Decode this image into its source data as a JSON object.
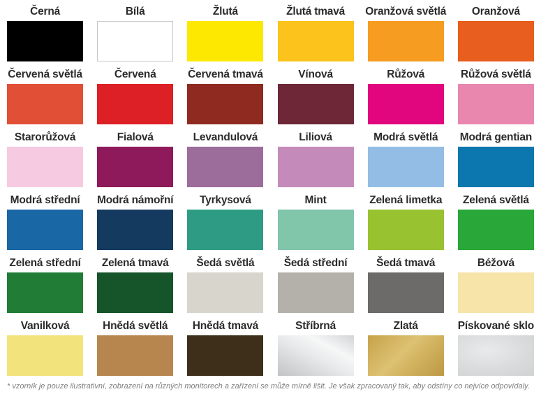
{
  "palette": {
    "rows": 6,
    "cols": 6,
    "swatches": [
      {
        "label": "Černá",
        "color": "#000000"
      },
      {
        "label": "Bílá",
        "color": "#ffffff",
        "border": "#c6c6c6"
      },
      {
        "label": "Žlutá",
        "color": "#fce800"
      },
      {
        "label": "Žlutá tmavá",
        "color": "#fbc31b"
      },
      {
        "label": "Oranžová světlá",
        "color": "#f59c21"
      },
      {
        "label": "Oranžová",
        "color": "#e75e1e"
      },
      {
        "label": "Červená světlá",
        "color": "#e14f36"
      },
      {
        "label": "Červená",
        "color": "#dd2025"
      },
      {
        "label": "Červená tmavá",
        "color": "#8e2a20"
      },
      {
        "label": "Vínová",
        "color": "#6d2737"
      },
      {
        "label": "Růžová",
        "color": "#e2067e"
      },
      {
        "label": "Růžová světlá",
        "color": "#e987ae"
      },
      {
        "label": "Starorůžová",
        "color": "#f6cae1"
      },
      {
        "label": "Fialová",
        "color": "#8e1a5b"
      },
      {
        "label": "Levandulová",
        "color": "#9c6c9a"
      },
      {
        "label": "Liliová",
        "color": "#c48aba"
      },
      {
        "label": "Modrá světlá",
        "color": "#93bde5"
      },
      {
        "label": "Modrá gentian",
        "color": "#0c77ae"
      },
      {
        "label": "Modrá střední",
        "color": "#1a67a5"
      },
      {
        "label": "Modrá námořní",
        "color": "#153a5f"
      },
      {
        "label": "Tyrkysová",
        "color": "#2e9c84"
      },
      {
        "label": "Mint",
        "color": "#81c5ab"
      },
      {
        "label": "Zelená limetka",
        "color": "#98c230"
      },
      {
        "label": "Zelená světlá",
        "color": "#29a738"
      },
      {
        "label": "Zelená střední",
        "color": "#217d36"
      },
      {
        "label": "Zelená tmavá",
        "color": "#165429"
      },
      {
        "label": "Šedá světlá",
        "color": "#d8d5cd"
      },
      {
        "label": "Šedá střední",
        "color": "#b4b1ab"
      },
      {
        "label": "Šedá tmavá",
        "color": "#6c6b69"
      },
      {
        "label": "Béžová",
        "color": "#f6e4a9"
      },
      {
        "label": "Vanilková",
        "color": "#f3e37d"
      },
      {
        "label": "Hnědá světlá",
        "color": "#b7864f"
      },
      {
        "label": "Hnědá tmavá",
        "color": "#3e2f1b"
      },
      {
        "label": "Stříbrná",
        "gradient": "linear-gradient(to top right, #c1c3c5 0%, #e9ebec 50%, #f6f7f7 70%, #d2d4d6 100%)"
      },
      {
        "label": "Zlatá",
        "gradient": "linear-gradient(135deg, #c6a24a 0%, #ddc273 45%, #d3b562 60%, #bd9843 100%)"
      },
      {
        "label": "Pískované sklo",
        "gradient": "radial-gradient(ellipse 90% 85% at 38% 38%, #e8eaeb 0%, #d8dadb 60%, #d0d2d3 100%)"
      }
    ]
  },
  "footnote": "* vzorník je pouze ilustrativní, zobrazení na různých monitorech a zařízení se může mírně lišit. Je však zpracovaný tak, aby odstíny co nejvíce odpovídaly.",
  "chart_data": {
    "type": "table",
    "columns": [
      "label",
      "color"
    ],
    "rows": [
      [
        "Černá",
        "#000000"
      ],
      [
        "Bílá",
        "#ffffff"
      ],
      [
        "Žlutá",
        "#fce800"
      ],
      [
        "Žlutá tmavá",
        "#fbc31b"
      ],
      [
        "Oranžová světlá",
        "#f59c21"
      ],
      [
        "Oranžová",
        "#e75e1e"
      ],
      [
        "Červená světlá",
        "#e14f36"
      ],
      [
        "Červená",
        "#dd2025"
      ],
      [
        "Červená tmavá",
        "#8e2a20"
      ],
      [
        "Vínová",
        "#6d2737"
      ],
      [
        "Růžová",
        "#e2067e"
      ],
      [
        "Růžová světlá",
        "#e987ae"
      ],
      [
        "Starorůžová",
        "#f6cae1"
      ],
      [
        "Fialová",
        "#8e1a5b"
      ],
      [
        "Levandulová",
        "#9c6c9a"
      ],
      [
        "Liliová",
        "#c48aba"
      ],
      [
        "Modrá světlá",
        "#93bde5"
      ],
      [
        "Modrá gentian",
        "#0c77ae"
      ],
      [
        "Modrá střední",
        "#1a67a5"
      ],
      [
        "Modrá námořní",
        "#153a5f"
      ],
      [
        "Tyrkysová",
        "#2e9c84"
      ],
      [
        "Mint",
        "#81c5ab"
      ],
      [
        "Zelená limetka",
        "#98c230"
      ],
      [
        "Zelená světlá",
        "#29a738"
      ],
      [
        "Zelená střední",
        "#217d36"
      ],
      [
        "Zelená tmavá",
        "#165429"
      ],
      [
        "Šedá světlá",
        "#d8d5cd"
      ],
      [
        "Šedá střední",
        "#b4b1ab"
      ],
      [
        "Šedá tmavá",
        "#6c6b69"
      ],
      [
        "Béžová",
        "#f6e4a9"
      ],
      [
        "Vanilková",
        "#f3e37d"
      ],
      [
        "Hnědá světlá",
        "#b7864f"
      ],
      [
        "Hnědá tmavá",
        "#3e2f1b"
      ],
      [
        "Stříbrná",
        "metallic-silver-gradient"
      ],
      [
        "Zlatá",
        "metallic-gold-gradient"
      ],
      [
        "Pískované sklo",
        "frosted-glass-gradient"
      ]
    ],
    "layout": "6x6 grid, label above each swatch, footnote below"
  }
}
